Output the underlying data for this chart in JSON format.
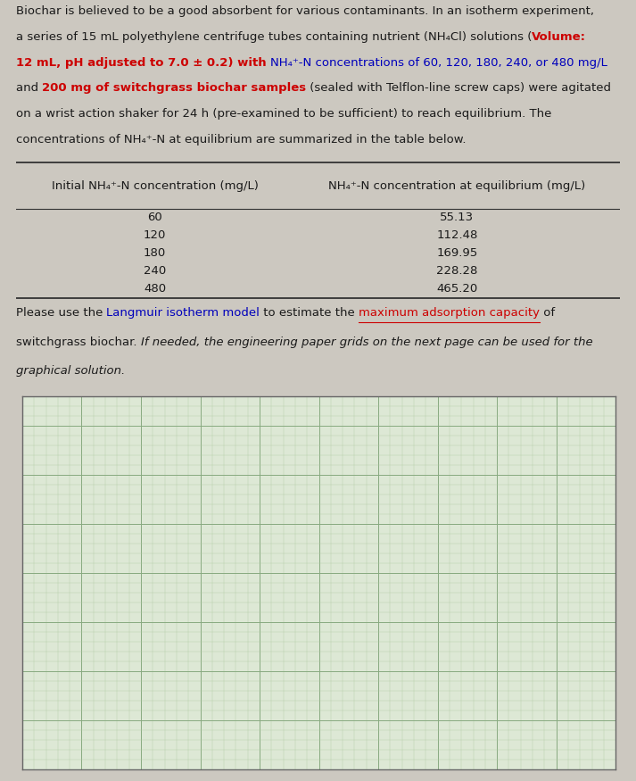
{
  "background_color": "#ccc8c0",
  "paragraph_lines": [
    {
      "segments": [
        {
          "text": "Biochar is believed to be a good absorbent for various contaminants. In an isotherm experiment,",
          "color": "#1a1a1a",
          "bold": false,
          "italic": false
        }
      ]
    },
    {
      "segments": [
        {
          "text": "a series of 15 mL polyethylene centrifuge tubes containing nutrient (NH₄Cl) solutions (",
          "color": "#1a1a1a",
          "bold": false,
          "italic": false
        },
        {
          "text": "Volume:",
          "color": "#cc0000",
          "bold": true,
          "italic": false
        }
      ]
    },
    {
      "segments": [
        {
          "text": "12 mL, pH adjusted to 7.0 ± 0.2) with ",
          "color": "#cc0000",
          "bold": true,
          "italic": false
        },
        {
          "text": "NH₄⁺-N concentrations of 60, 120, 180, 240, or 480 mg/L",
          "color": "#0000bb",
          "bold": false,
          "italic": false
        }
      ]
    },
    {
      "segments": [
        {
          "text": "and ",
          "color": "#1a1a1a",
          "bold": false,
          "italic": false
        },
        {
          "text": "200 mg of switchgrass biochar samples",
          "color": "#cc0000",
          "bold": true,
          "italic": false
        },
        {
          "text": " (sealed with Telflon-line screw caps) were agitated",
          "color": "#1a1a1a",
          "bold": false,
          "italic": false
        }
      ]
    },
    {
      "segments": [
        {
          "text": "on a wrist action shaker for 24 h (pre-examined to be sufficient) to reach equilibrium. The",
          "color": "#1a1a1a",
          "bold": false,
          "italic": false
        }
      ]
    },
    {
      "segments": [
        {
          "text": "concentrations of NH₄⁺-N at equilibrium are summarized in the table below.",
          "color": "#1a1a1a",
          "bold": false,
          "italic": false
        }
      ]
    }
  ],
  "table_col1_header": "Initial NH₄⁺-N concentration (mg/L)",
  "table_col2_header": "NH₄⁺-N concentration at equilibrium (mg/L)",
  "table_rows": [
    [
      60,
      55.13
    ],
    [
      120,
      112.48
    ],
    [
      180,
      169.95
    ],
    [
      240,
      228.28
    ],
    [
      480,
      465.2
    ]
  ],
  "bottom_lines": [
    {
      "segments": [
        {
          "text": "Please use the ",
          "color": "#1a1a1a",
          "bold": false,
          "italic": false,
          "underline": false
        },
        {
          "text": "Langmuir isotherm model",
          "color": "#0000bb",
          "bold": false,
          "italic": false,
          "underline": false
        },
        {
          "text": " to estimate the ",
          "color": "#1a1a1a",
          "bold": false,
          "italic": false,
          "underline": false
        },
        {
          "text": "maximum adsorption capacity",
          "color": "#cc0000",
          "bold": false,
          "italic": false,
          "underline": true
        },
        {
          "text": " of",
          "color": "#1a1a1a",
          "bold": false,
          "italic": false,
          "underline": false
        }
      ]
    },
    {
      "segments": [
        {
          "text": "switchgrass biochar. ",
          "color": "#1a1a1a",
          "bold": false,
          "italic": false,
          "underline": false
        },
        {
          "text": "If needed, the engineering paper grids on the next page can be used for the",
          "color": "#1a1a1a",
          "bold": false,
          "italic": true,
          "underline": false
        }
      ]
    },
    {
      "segments": [
        {
          "text": "graphical solution.",
          "color": "#1a1a1a",
          "bold": false,
          "italic": true,
          "underline": false
        }
      ]
    }
  ],
  "grid_bg": "#dde8d5",
  "grid_small_color": "#adc8a0",
  "grid_large_color": "#88aa80",
  "grid_border_color": "#666666",
  "grid_nx_small": 50,
  "grid_ny_small": 38,
  "grid_major_every": 5,
  "font_size": 9.5,
  "table_font_size": 9.5
}
